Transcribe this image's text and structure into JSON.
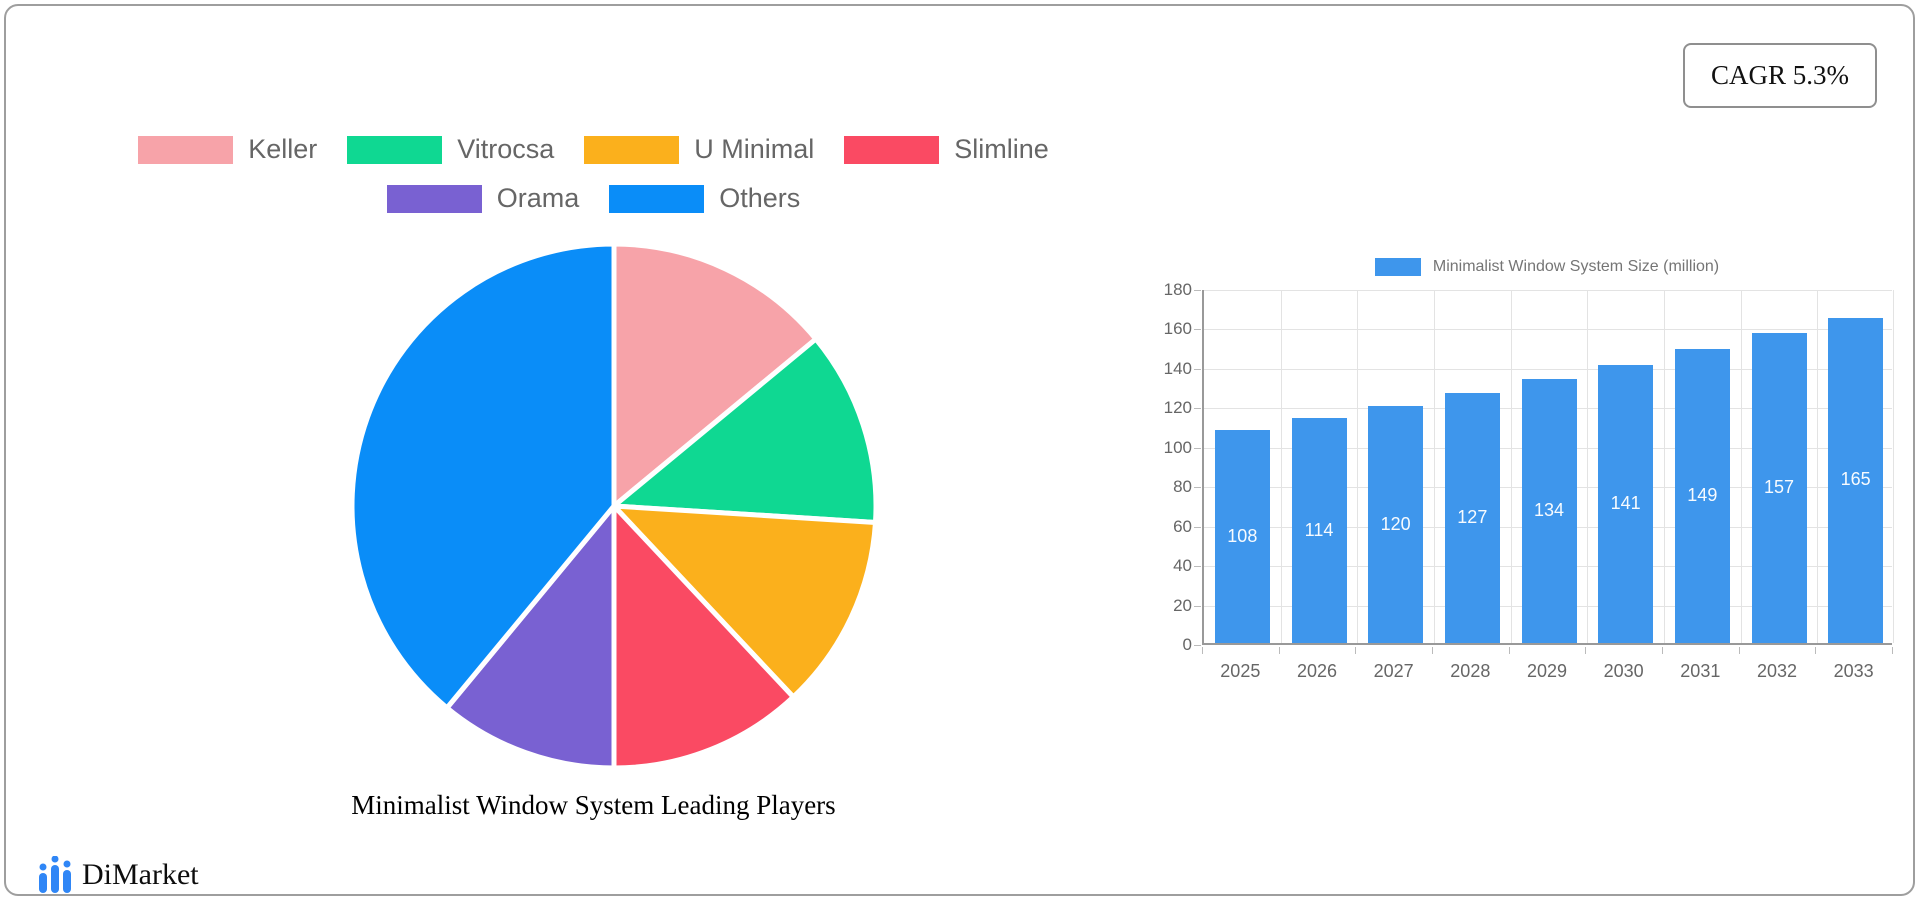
{
  "cagr_badge": "CAGR 5.3%",
  "logo": {
    "text": "DiMarket",
    "icon": "bar-chart-icon",
    "icon_color": "#2f86f6"
  },
  "chart_data": [
    {
      "type": "pie",
      "title": "Minimalist Window System Leading Players",
      "legend_position": "top",
      "series": [
        {
          "name": "Keller",
          "value": 14,
          "color": "#f7a3a9"
        },
        {
          "name": "Vitrocsa",
          "value": 12,
          "color": "#0fd892"
        },
        {
          "name": "U Minimal",
          "value": 12,
          "color": "#fbb01c"
        },
        {
          "name": "Slimline",
          "value": 12,
          "color": "#fa4a63"
        },
        {
          "name": "Orama",
          "value": 11,
          "color": "#7961d2"
        },
        {
          "name": "Others",
          "value": 39,
          "color": "#0a8df8"
        }
      ]
    },
    {
      "type": "bar",
      "legend": "Minimalist Window System Size (million)",
      "categories": [
        "2025",
        "2026",
        "2027",
        "2028",
        "2029",
        "2030",
        "2031",
        "2032",
        "2033"
      ],
      "values": [
        108,
        114,
        120,
        127,
        134,
        141,
        149,
        157,
        165
      ],
      "ylim": [
        0,
        180
      ],
      "ytick_step": 20,
      "bar_color": "#3e96ec",
      "grid": true,
      "legend_position": "top"
    }
  ]
}
